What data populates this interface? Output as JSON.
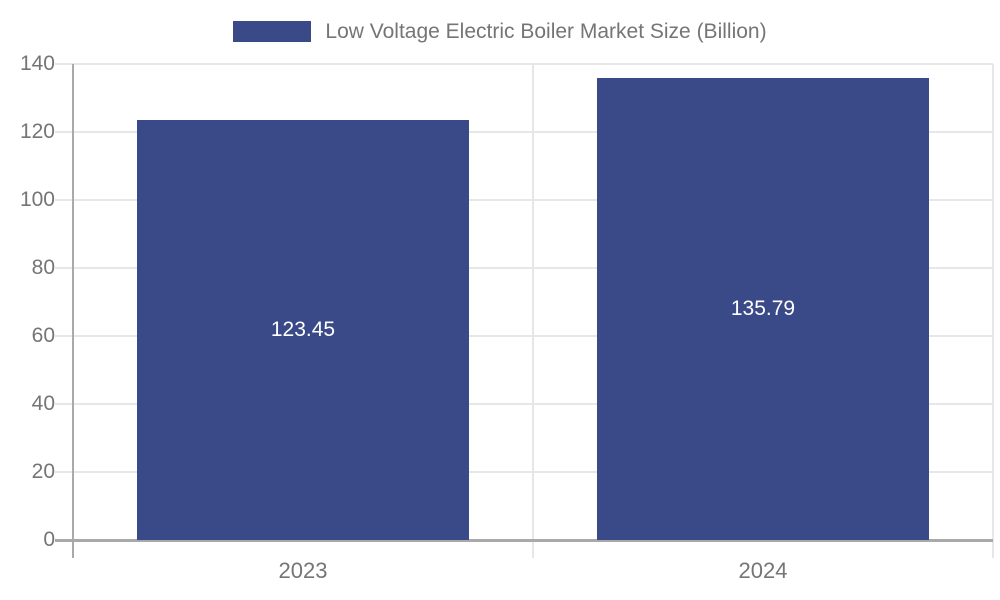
{
  "chart_data": {
    "type": "bar",
    "title": "",
    "legend": "Low Voltage Electric Boiler Market Size (Billion)",
    "categories": [
      "2023",
      "2024"
    ],
    "series": [
      {
        "name": "Low Voltage Electric Boiler Market Size (Billion)",
        "values": [
          123.45,
          135.79
        ]
      }
    ],
    "value_labels": [
      "123.45",
      "135.79"
    ],
    "xlabel": "",
    "ylabel": "",
    "ylim": [
      0,
      140
    ],
    "ytick_step": 20,
    "ytick_labels": [
      "0",
      "20",
      "40",
      "60",
      "80",
      "100",
      "120",
      "140"
    ],
    "grid": true,
    "legend_position": "top-center",
    "colors": {
      "bar": "#3A4A88",
      "bar_label_text": "#FFFFFF",
      "axis_line": "#A9A9A9",
      "gridline": "#E7E7E7",
      "tick_text": "#757575",
      "background": "#FFFFFF"
    }
  }
}
